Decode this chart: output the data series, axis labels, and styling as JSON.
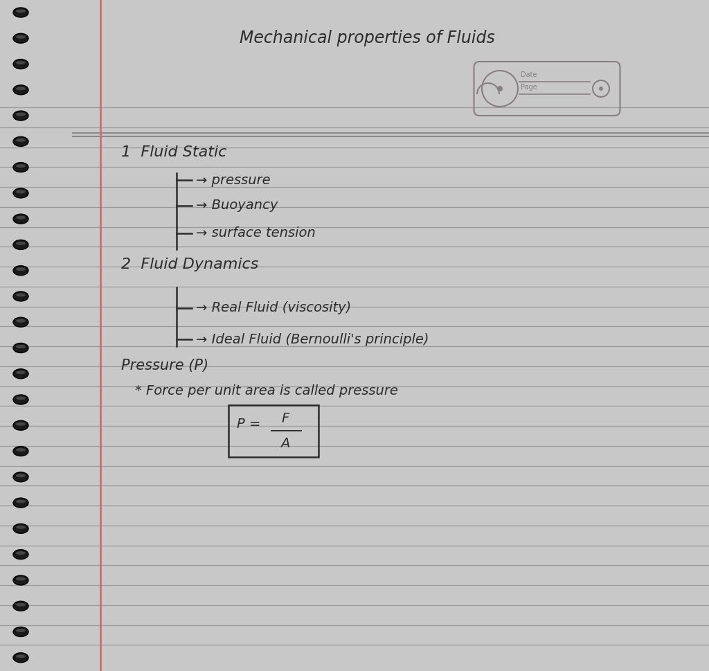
{
  "bg_color": "#c8c8c8",
  "page_color": "#d8d8d5",
  "line_color": "#9a9a9a",
  "red_line_color": "#c0706060",
  "text_color": "#2c2c2c",
  "spiral_color": "#111111",
  "tag_color": "#888080",
  "title": "Mechanical properties of Fluids",
  "heading1": "1  Fluid Static",
  "sub1a": "→ pressure",
  "sub1b": "→ Buoyancy",
  "sub1c": "→ surface tension",
  "heading2": "2  Fluid Dynamics",
  "sub2a": "→ Real Fluid (viscosity)",
  "sub2b": "→ Ideal Fluid (Bernoulli's principle)",
  "pressure_heading": "Pressure (P)",
  "pressure_note": "* Force per unit area is called pressure",
  "date_label": "Date",
  "page_label": "Page"
}
